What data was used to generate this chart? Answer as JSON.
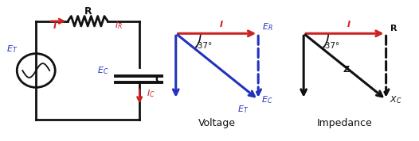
{
  "bg_color": "#ffffff",
  "blue": "#2233bb",
  "red": "#cc2222",
  "black": "#111111",
  "title_voltage": "Voltage",
  "title_impedance": "Impedance",
  "angle_label": "-37°",
  "figsize": [
    5.26,
    1.78
  ],
  "dpi": 100,
  "circuit_lw": 2.0,
  "arrow_lw": 2.2
}
